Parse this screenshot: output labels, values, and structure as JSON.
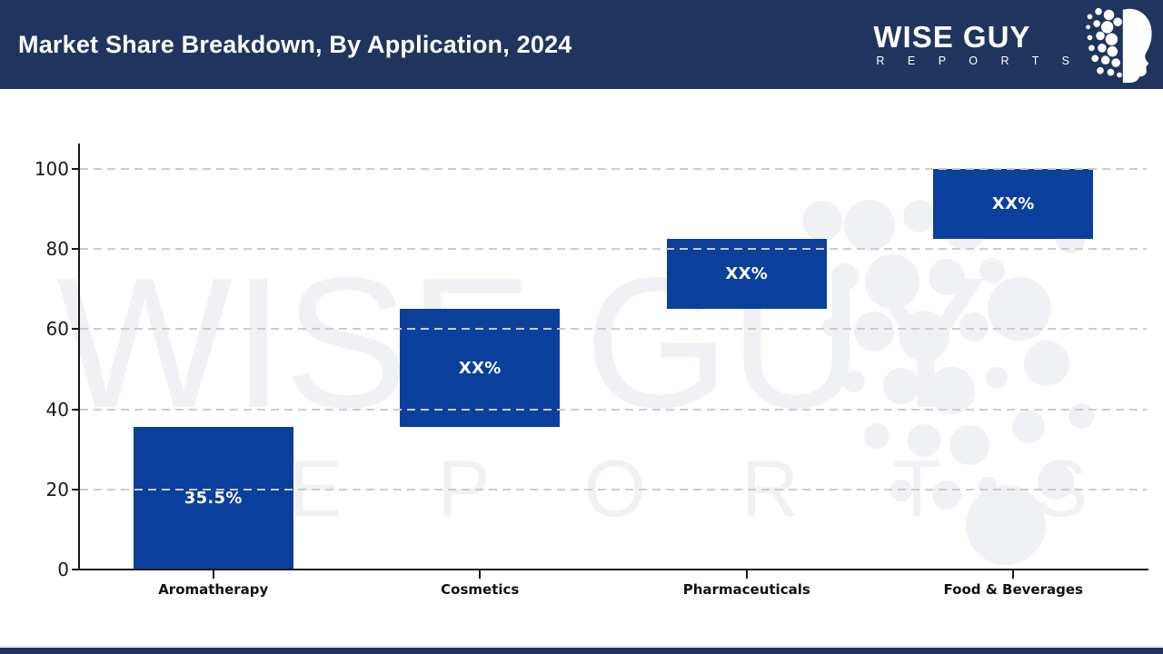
{
  "header": {
    "title": "Market Share Breakdown, By Application, 2024",
    "logo_line1": "WISE GUY",
    "logo_line2": "R E P O R T S"
  },
  "watermark": {
    "line1": "WISE GUY",
    "line2": "R E P O R T S"
  },
  "chart_data": {
    "type": "bar",
    "subtype": "waterfall-style floating segment bars",
    "title": "Market Share Breakdown, By Application, 2024",
    "categories": [
      "Aromatherapy",
      "Cosmetics",
      "Pharmaceuticals",
      "Food & Beverages"
    ],
    "segments": [
      {
        "category": "Aromatherapy",
        "start": 0,
        "end": 35.5,
        "label": "35.5%"
      },
      {
        "category": "Cosmetics",
        "start": 35.5,
        "end": 65,
        "label": "XX%"
      },
      {
        "category": "Pharmaceuticals",
        "start": 65,
        "end": 82.5,
        "label": "XX%"
      },
      {
        "category": "Food & Beverages",
        "start": 82.5,
        "end": 100,
        "label": "XX%"
      }
    ],
    "ylim": [
      0,
      100
    ],
    "yticks": [
      0,
      20,
      40,
      60,
      80,
      100
    ],
    "xlabel": "",
    "ylabel": "",
    "grid": "horizontal dashed gridlines drawn above bars",
    "legend": "none",
    "bar_color": "#0a3f9b",
    "value_label_color": "#ffffff",
    "header_color": "#1f355e",
    "watermark_color": "#f0f1f4"
  }
}
